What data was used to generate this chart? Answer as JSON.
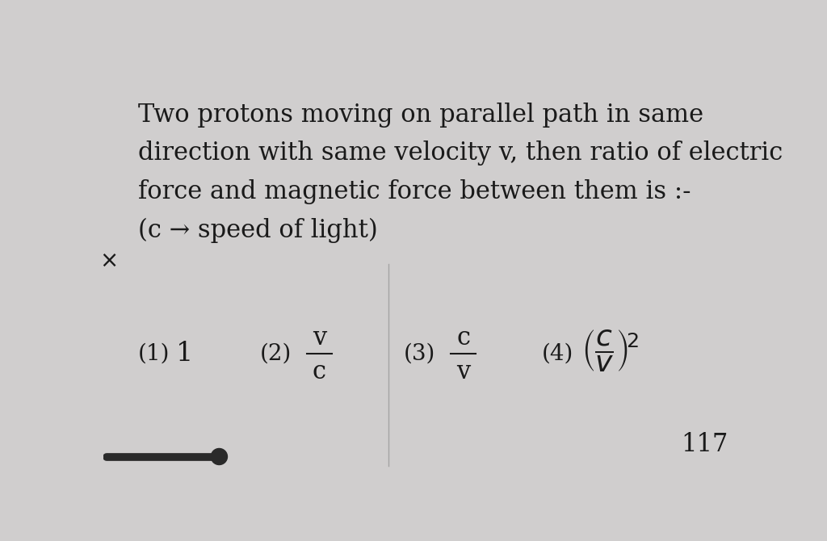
{
  "background_color": "#d0cece",
  "text_color": "#1a1a1a",
  "title_lines": [
    "Two protons moving on parallel path in same",
    "direction with same velocity v, then ratio of electric",
    "force and magnetic force between them is :-",
    "(c → speed of light)"
  ],
  "page_number": "117",
  "fig_width": 10.24,
  "fig_height": 6.7,
  "dpi": 100
}
